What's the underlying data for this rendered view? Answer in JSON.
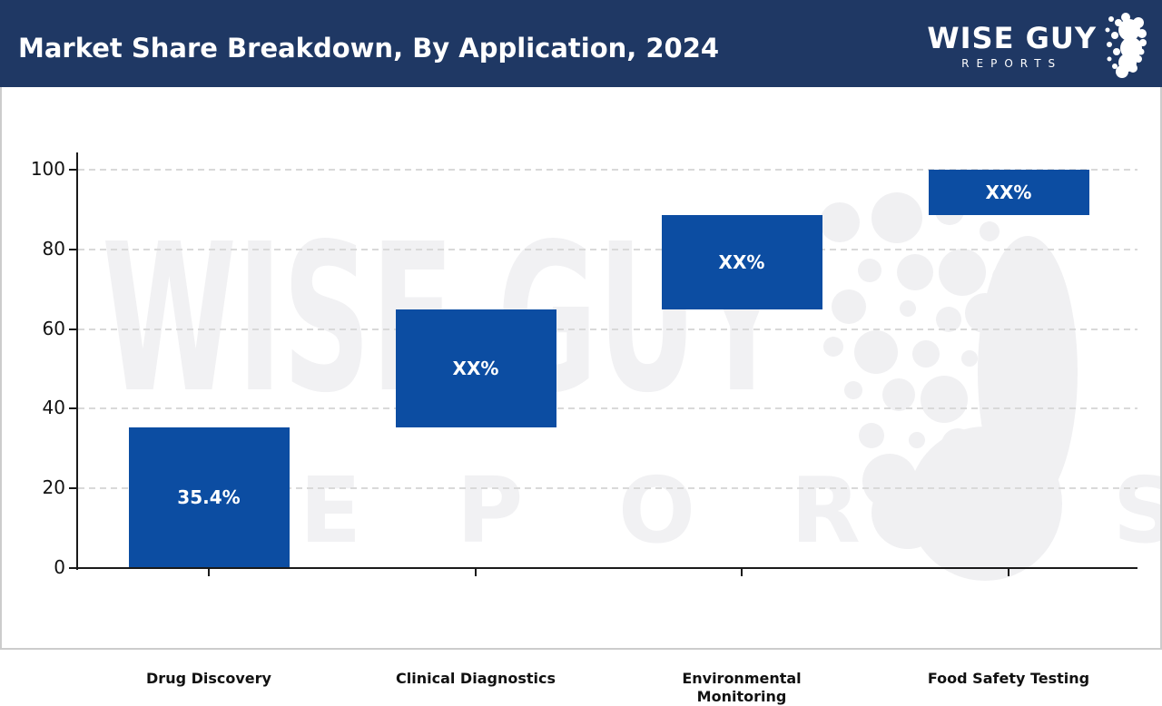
{
  "header": {
    "title": "Market Share Breakdown, By Application, 2024"
  },
  "logo": {
    "wordmark": "WISE GUY",
    "subtext": "REPORTS"
  },
  "watermark": {
    "line1": "WISE GUY",
    "line2": "R E P O R T S"
  },
  "colors": {
    "header_bg": "#1f3864",
    "bar": "#0c4da2",
    "grid": "#d9d9d9",
    "axis": "#1a1a1a",
    "bar_label": "#ffffff",
    "watermark": "#f1f1f3",
    "frame_border": "#cccccc"
  },
  "chart_data": {
    "type": "bar",
    "subtype": "waterfall",
    "title": "Market Share Breakdown, By Application, 2024",
    "categories": [
      "Drug Discovery",
      "Clinical Diagnostics",
      "Environmental Monitoring",
      "Food Safety Testing"
    ],
    "segments": [
      {
        "category": "Drug Discovery",
        "start": 0,
        "end": 35.4,
        "label": "35.4%"
      },
      {
        "category": "Clinical Diagnostics",
        "start": 35.4,
        "end": 65,
        "label": "XX%"
      },
      {
        "category": "Environmental Monitoring",
        "start": 65,
        "end": 88.5,
        "label": "XX%"
      },
      {
        "category": "Food Safety Testing",
        "start": 88.5,
        "end": 100,
        "label": "XX%"
      }
    ],
    "ylim": [
      0,
      100
    ],
    "yticks": [
      0,
      20,
      40,
      60,
      80,
      100
    ],
    "xlabel": "",
    "ylabel": "",
    "grid": "horizontal-dashed",
    "legend": "none",
    "bar_color": "#0c4da2"
  }
}
